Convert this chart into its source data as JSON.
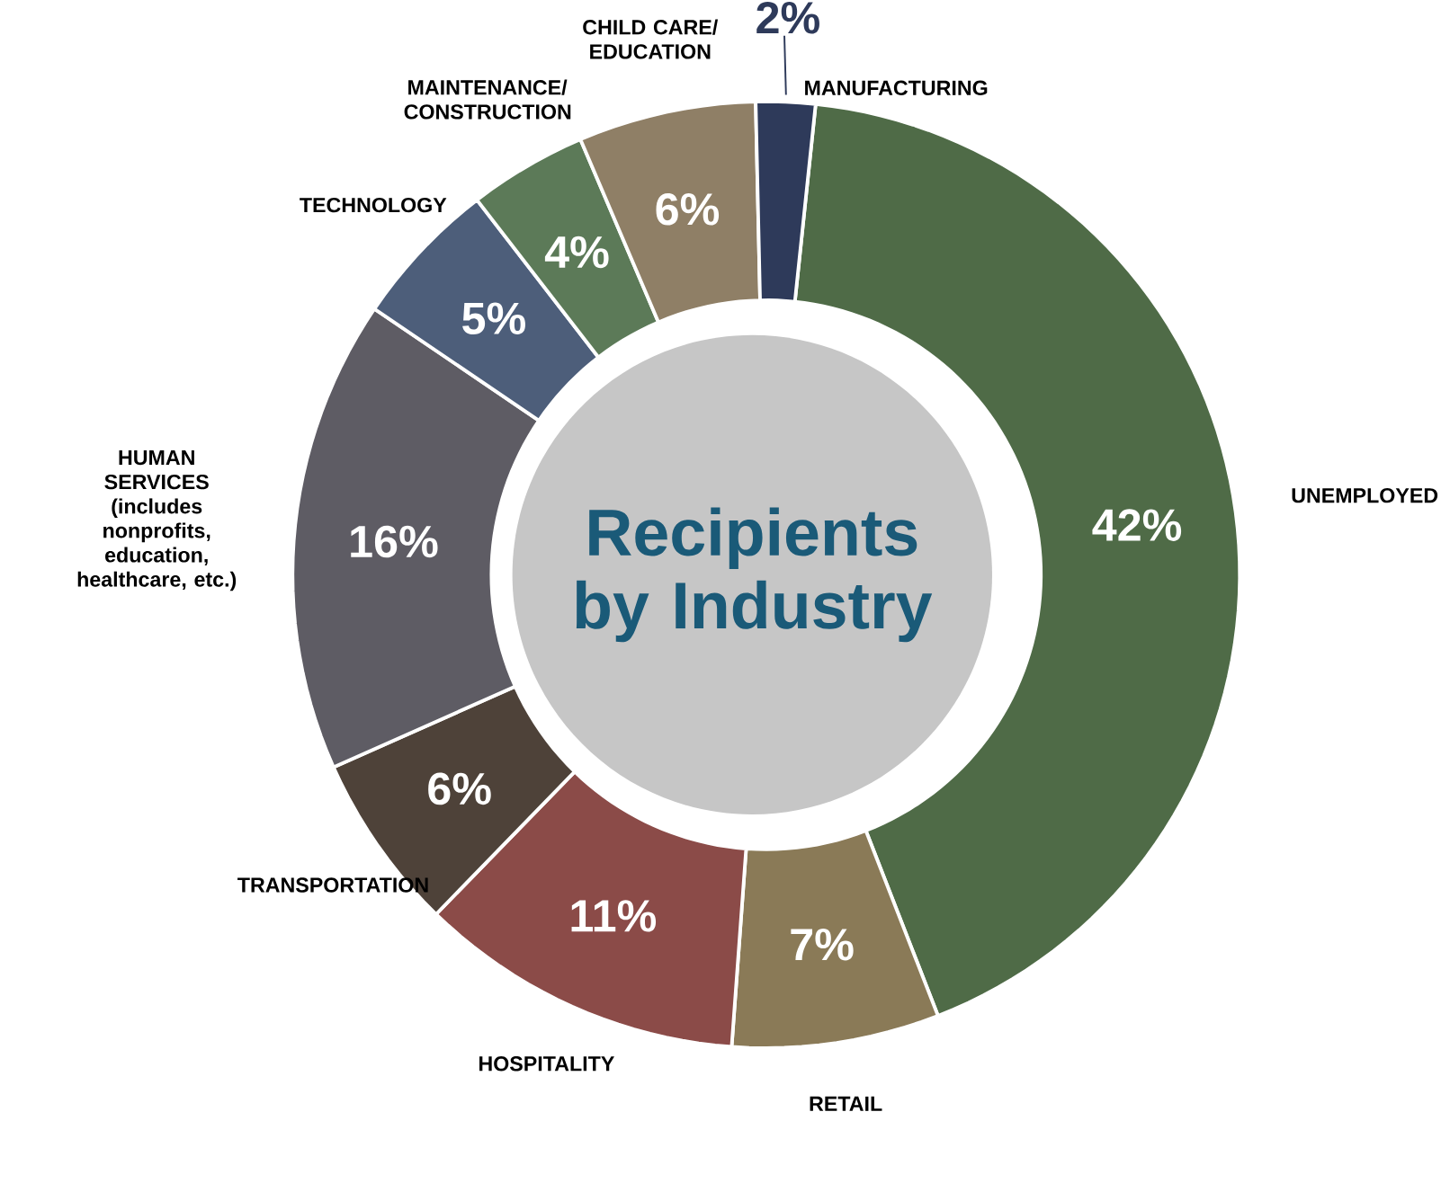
{
  "chart_data": {
    "type": "donut",
    "title": "Recipients by Industry",
    "categories": [
      "UNEMPLOYED",
      "RETAIL",
      "HOSPITALITY",
      "TRANSPORTATION",
      "HUMAN SERVICES (includes nonprofits, education, healthcare, etc.)",
      "TECHNOLOGY",
      "MAINTENANCE/ CONSTRUCTION",
      "CHILD CARE/ EDUCATION",
      "MANUFACTURING"
    ],
    "values": [
      42,
      7,
      11,
      6,
      16,
      5,
      4,
      6,
      2
    ],
    "value_labels": [
      "42%",
      "7%",
      "11%",
      "6%",
      "16%",
      "5%",
      "4%",
      "6%",
      "2%"
    ],
    "colors": [
      "#4f6b47",
      "#8a7a57",
      "#8b4b48",
      "#4e4239",
      "#5e5c64",
      "#4d5e7a",
      "#5c7a58",
      "#8f7f66",
      "#2e3a5a"
    ]
  }
}
